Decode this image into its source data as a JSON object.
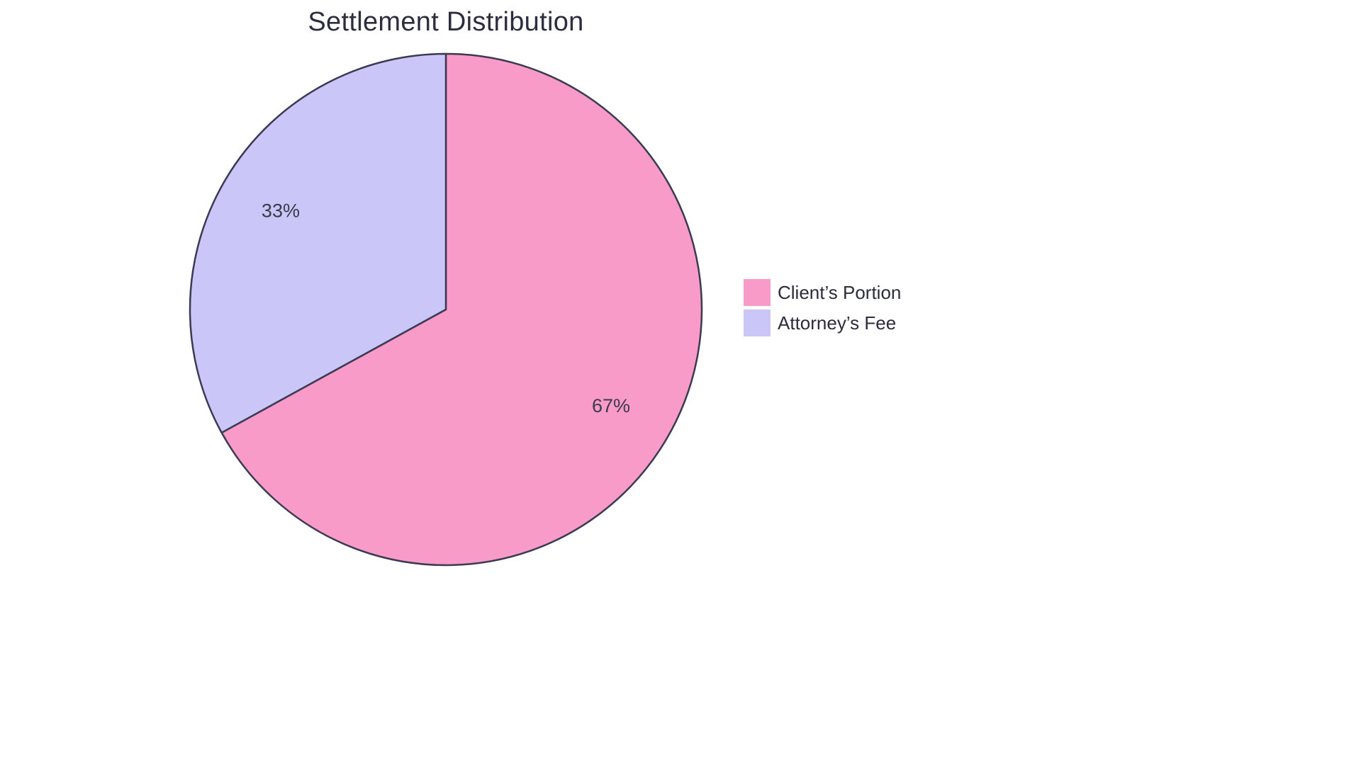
{
  "chart_data": {
    "type": "pie",
    "title": "Settlement Distribution",
    "labels": [
      "Client’s Portion",
      "Attorney’s Fee"
    ],
    "values": [
      67,
      33
    ],
    "percent_labels": [
      "67%",
      "33%"
    ],
    "colors": [
      "#F99BC8",
      "#CAC6F7"
    ],
    "outline_color": "#3B3A53",
    "text_color": "#3a3a4a",
    "legend_position": "right",
    "start_angle_deg": 0,
    "direction": "clockwise"
  }
}
